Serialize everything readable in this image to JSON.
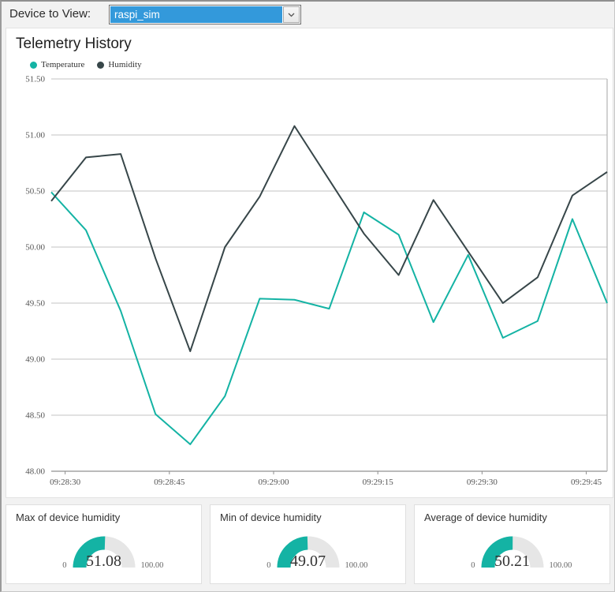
{
  "device_selector": {
    "label": "Device to View:",
    "value": "raspi_sim"
  },
  "panel": {
    "title": "Telemetry History"
  },
  "chart_data": {
    "type": "line",
    "title": "Telemetry History",
    "legend_position": "top-left",
    "grid": true,
    "ylim": [
      48.0,
      51.5
    ],
    "y_ticks": [
      "51.50",
      "51.00",
      "50.50",
      "50.00",
      "49.50",
      "49.00",
      "48.50",
      "48.00"
    ],
    "x_ticks": [
      {
        "label": "09:28:30",
        "offset_s": 2
      },
      {
        "label": "09:28:45",
        "offset_s": 17
      },
      {
        "label": "09:29:00",
        "offset_s": 32
      },
      {
        "label": "09:29:15",
        "offset_s": 47
      },
      {
        "label": "09:29:30",
        "offset_s": 62
      },
      {
        "label": "09:29:45",
        "offset_s": 77
      }
    ],
    "x_span_s": 80,
    "x": [
      "09:28:28",
      "09:28:33",
      "09:28:38",
      "09:28:43",
      "09:28:48",
      "09:28:53",
      "09:28:58",
      "09:29:03",
      "09:29:08",
      "09:29:13",
      "09:29:18",
      "09:29:23",
      "09:29:28",
      "09:29:33",
      "09:29:38",
      "09:29:43",
      "09:29:48"
    ],
    "x_offsets_s": [
      0,
      5,
      10,
      15,
      20,
      25,
      30,
      35,
      40,
      45,
      50,
      55,
      60,
      65,
      70,
      75,
      80
    ],
    "series": [
      {
        "name": "Temperature",
        "color": "#14b3a4",
        "values": [
          50.49,
          50.15,
          49.43,
          48.51,
          48.24,
          48.67,
          49.54,
          49.53,
          49.45,
          50.31,
          50.11,
          49.33,
          49.93,
          49.19,
          49.34,
          50.25,
          49.5
        ]
      },
      {
        "name": "Humidity",
        "color": "#374649",
        "values": [
          50.41,
          50.8,
          50.83,
          49.9,
          49.07,
          50.0,
          50.45,
          51.08,
          50.6,
          50.12,
          49.75,
          50.42,
          49.96,
          49.5,
          49.73,
          50.46,
          50.67
        ]
      }
    ]
  },
  "gauges": [
    {
      "title": "Max of device humidity",
      "value": "51.08",
      "min_label": "0",
      "max_label": "100.00",
      "min": 0,
      "max": 100
    },
    {
      "title": "Min of device humidity",
      "value": "49.07",
      "min_label": "0",
      "max_label": "100.00",
      "min": 0,
      "max": 100
    },
    {
      "title": "Average of device humidity",
      "value": "50.21",
      "min_label": "0",
      "max_label": "100.00",
      "min": 0,
      "max": 100
    }
  ],
  "colors": {
    "accent_teal": "#14b3a4",
    "series_dark": "#374649",
    "dropdown_blue": "#3399db",
    "gauge_track": "#e6e6e6",
    "grid_line": "#cfcfcf",
    "axis_line": "#909090"
  }
}
